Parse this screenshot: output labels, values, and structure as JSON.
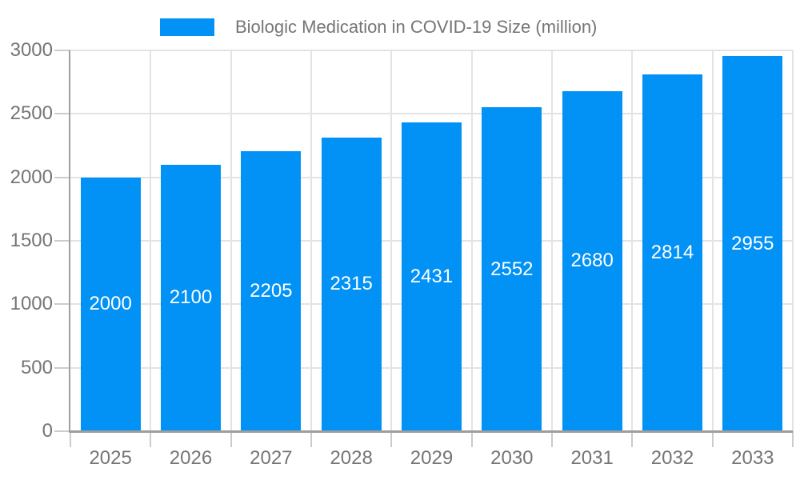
{
  "page": {
    "background": "#ffffff"
  },
  "legend": {
    "label": "Biologic Medication in COVID-19 Size (million)"
  },
  "chart_data": {
    "type": "bar",
    "title": "Biologic Medication in COVID-19 Size (million)",
    "categories": [
      "2025",
      "2026",
      "2027",
      "2028",
      "2029",
      "2030",
      "2031",
      "2032",
      "2033"
    ],
    "values": [
      2000,
      2100,
      2205,
      2315,
      2431,
      2552,
      2680,
      2814,
      2955
    ],
    "xlabel": "",
    "ylabel": "",
    "ylim": [
      0,
      3000
    ],
    "yticks": [
      0,
      500,
      1000,
      1500,
      2000,
      2500,
      3000
    ],
    "grid": true,
    "legend_position": "top",
    "value_labels": "inside-center",
    "colors": {
      "bar": "#0291f5",
      "grid": "#e3e3e3",
      "axis": "#9e9e9e",
      "tick": "#cccccc",
      "label_text": "#757575",
      "value_text": "#ffffff",
      "background": "#ffffff"
    }
  }
}
